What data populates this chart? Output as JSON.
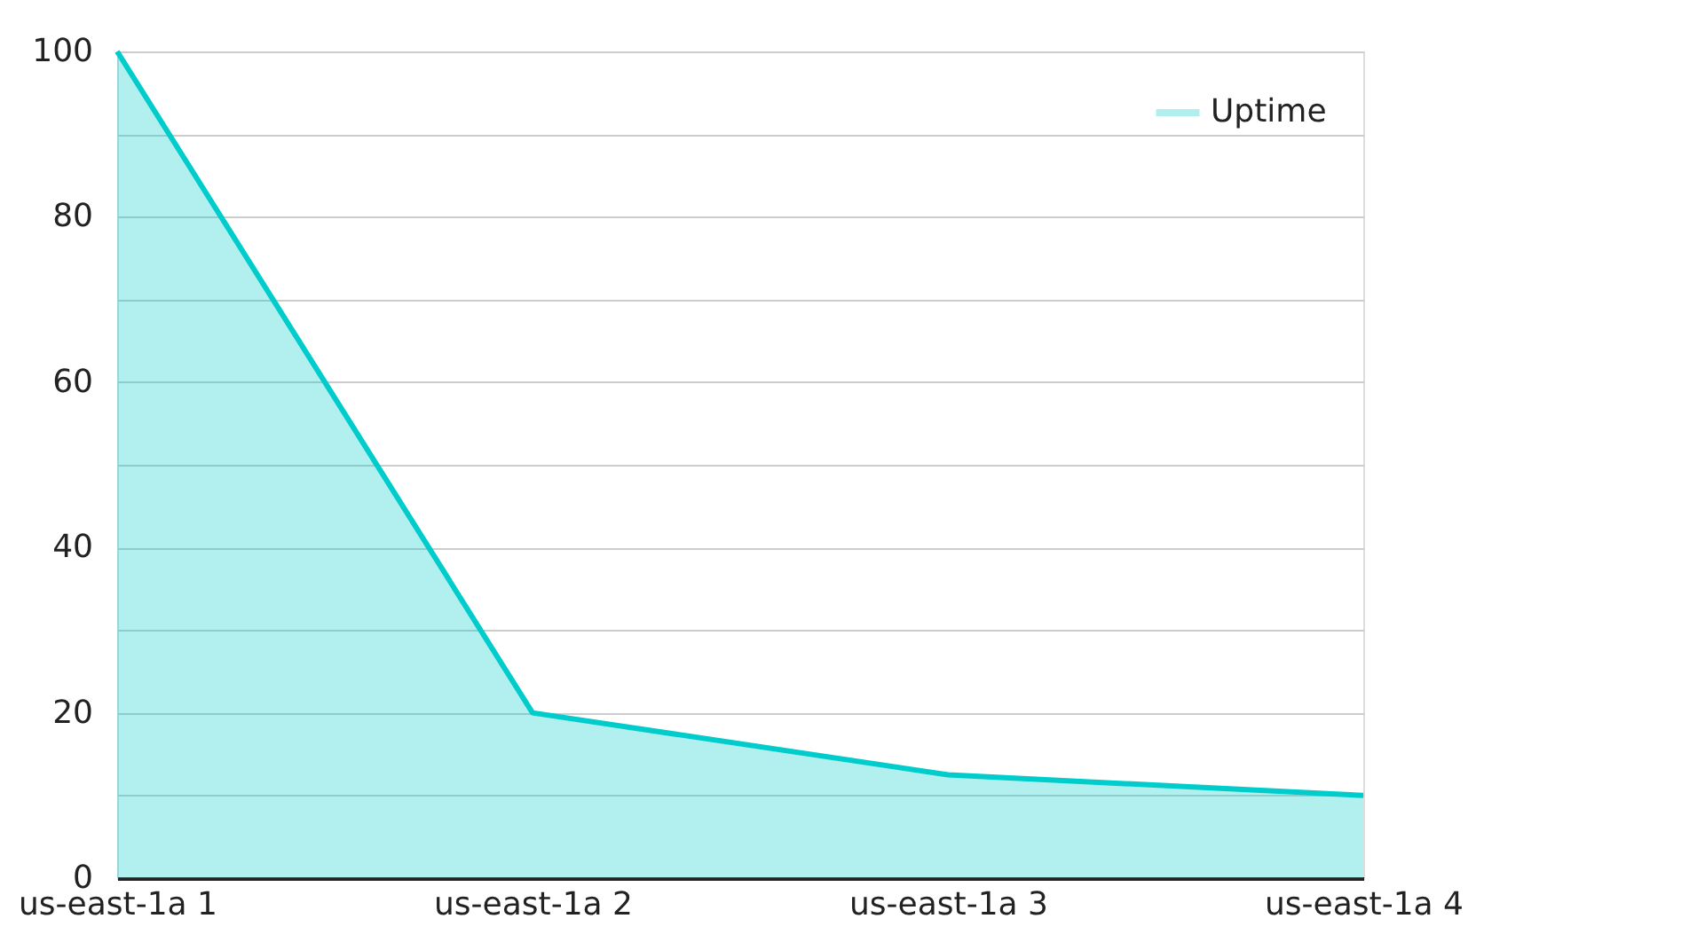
{
  "chart_data": {
    "type": "area",
    "categories": [
      "us-east-1a 1",
      "us-east-1a 2",
      "us-east-1a 3",
      "us-east-1a 4"
    ],
    "series": [
      {
        "name": "Uptime",
        "color": "#00cccc",
        "values": [
          100,
          20,
          12.5,
          10
        ]
      }
    ],
    "ylim": [
      0,
      100
    ],
    "yticks": [
      0,
      {
        "value": 10,
        "label": null
      },
      20,
      {
        "value": 30,
        "label": null
      },
      40,
      {
        "value": 50,
        "label": null
      },
      60,
      {
        "value": 70,
        "label": null
      },
      80,
      {
        "value": 90,
        "label": null
      },
      100
    ],
    "grid": "y",
    "legend": "top right"
  }
}
